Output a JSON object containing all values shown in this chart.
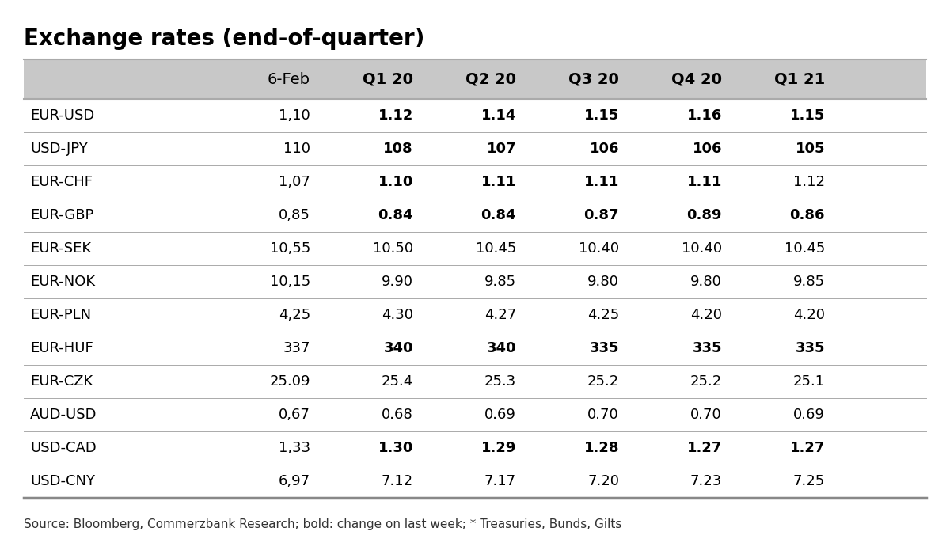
{
  "title": "Exchange rates (end-of-quarter)",
  "columns": [
    "",
    "6-Feb",
    "Q1 20",
    "Q2 20",
    "Q3 20",
    "Q4 20",
    "Q1 21"
  ],
  "rows": [
    {
      "label": "EUR-USD",
      "values": [
        "1,10",
        "1.12",
        "1.14",
        "1.15",
        "1.16",
        "1.15"
      ],
      "bold": [
        false,
        true,
        true,
        true,
        true,
        true
      ]
    },
    {
      "label": "USD-JPY",
      "values": [
        "110",
        "108",
        "107",
        "106",
        "106",
        "105"
      ],
      "bold": [
        false,
        true,
        true,
        true,
        true,
        true
      ]
    },
    {
      "label": "EUR-CHF",
      "values": [
        "1,07",
        "1.10",
        "1.11",
        "1.11",
        "1.11",
        "1.12"
      ],
      "bold": [
        false,
        true,
        true,
        true,
        true,
        false
      ]
    },
    {
      "label": "EUR-GBP",
      "values": [
        "0,85",
        "0.84",
        "0.84",
        "0.87",
        "0.89",
        "0.86"
      ],
      "bold": [
        false,
        true,
        true,
        true,
        true,
        true
      ]
    },
    {
      "label": "EUR-SEK",
      "values": [
        "10,55",
        "10.50",
        "10.45",
        "10.40",
        "10.40",
        "10.45"
      ],
      "bold": [
        false,
        false,
        false,
        false,
        false,
        false
      ]
    },
    {
      "label": "EUR-NOK",
      "values": [
        "10,15",
        "9.90",
        "9.85",
        "9.80",
        "9.80",
        "9.85"
      ],
      "bold": [
        false,
        false,
        false,
        false,
        false,
        false
      ]
    },
    {
      "label": "EUR-PLN",
      "values": [
        "4,25",
        "4.30",
        "4.27",
        "4.25",
        "4.20",
        "4.20"
      ],
      "bold": [
        false,
        false,
        false,
        false,
        false,
        false
      ]
    },
    {
      "label": "EUR-HUF",
      "values": [
        "337",
        "340",
        "340",
        "335",
        "335",
        "335"
      ],
      "bold": [
        false,
        true,
        true,
        true,
        true,
        true
      ]
    },
    {
      "label": "EUR-CZK",
      "values": [
        "25.09",
        "25.4",
        "25.3",
        "25.2",
        "25.2",
        "25.1"
      ],
      "bold": [
        false,
        false,
        false,
        false,
        false,
        false
      ]
    },
    {
      "label": "AUD-USD",
      "values": [
        "0,67",
        "0.68",
        "0.69",
        "0.70",
        "0.70",
        "0.69"
      ],
      "bold": [
        false,
        false,
        false,
        false,
        false,
        false
      ]
    },
    {
      "label": "USD-CAD",
      "values": [
        "1,33",
        "1.30",
        "1.29",
        "1.28",
        "1.27",
        "1.27"
      ],
      "bold": [
        false,
        true,
        true,
        true,
        true,
        true
      ]
    },
    {
      "label": "USD-CNY",
      "values": [
        "6,97",
        "7.12",
        "7.17",
        "7.20",
        "7.23",
        "7.25"
      ],
      "bold": [
        false,
        false,
        false,
        false,
        false,
        false
      ]
    }
  ],
  "footer": "Source: Bloomberg, Commerzbank Research; bold: change on last week; * Treasuries, Bunds, Gilts",
  "header_bg": "#c8c8c8",
  "title_fontsize": 20,
  "header_fontsize": 14,
  "cell_fontsize": 13,
  "footer_fontsize": 11,
  "fig_bg": "#ffffff",
  "border_color": "#aaaaaa",
  "header_col_bold": [
    false,
    false,
    true,
    true,
    true,
    true,
    true
  ]
}
